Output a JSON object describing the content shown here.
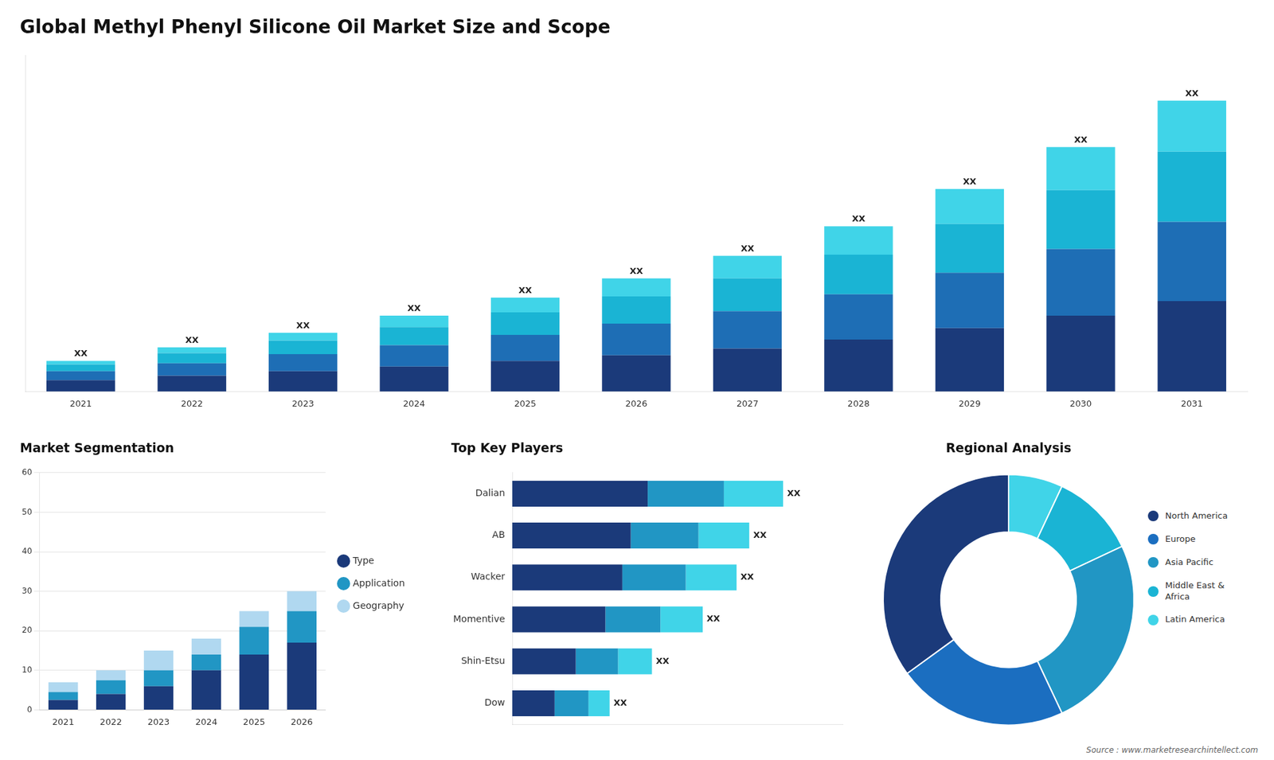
{
  "chart_data": [
    {
      "type": "bar",
      "title": "Global Methyl Phenyl Silicone Oil Market Size and Scope",
      "categories": [
        "2021",
        "2022",
        "2023",
        "2024",
        "2025",
        "2026",
        "2027",
        "2028",
        "2029",
        "2030",
        "2031"
      ],
      "series": [
        {
          "color": "#1b3a7a",
          "values": [
            1.0,
            1.4,
            1.8,
            2.2,
            2.7,
            3.2,
            3.8,
            4.6,
            5.6,
            6.7,
            8.0
          ]
        },
        {
          "color": "#1e6eb5",
          "values": [
            0.8,
            1.1,
            1.5,
            1.9,
            2.3,
            2.8,
            3.3,
            4.0,
            4.9,
            5.9,
            7.0
          ]
        },
        {
          "color": "#1ab4d4",
          "values": [
            0.6,
            0.9,
            1.2,
            1.6,
            2.0,
            2.4,
            2.9,
            3.5,
            4.3,
            5.2,
            6.2
          ]
        },
        {
          "color": "#40d4e8",
          "values": [
            0.3,
            0.5,
            0.7,
            1.0,
            1.3,
            1.6,
            2.0,
            2.5,
            3.1,
            3.8,
            4.5
          ]
        }
      ],
      "stacked": true,
      "ylim": [
        0,
        29.7
      ],
      "yticks": [],
      "grid": false,
      "tick_labels": "x",
      "annotations": [
        {
          "category": "2021",
          "text": "XX"
        },
        {
          "category": "2022",
          "text": "XX"
        },
        {
          "category": "2023",
          "text": "XX"
        },
        {
          "category": "2024",
          "text": "XX"
        },
        {
          "category": "2025",
          "text": "XX"
        },
        {
          "category": "2026",
          "text": "XX"
        },
        {
          "category": "2027",
          "text": "XX"
        },
        {
          "category": "2028",
          "text": "XX"
        },
        {
          "category": "2029",
          "text": "XX"
        },
        {
          "category": "2030",
          "text": "XX"
        },
        {
          "category": "2031",
          "text": "XX"
        },
        {
          "text": "Source : www.marketresearchintellect.com"
        }
      ]
    },
    {
      "type": "bar",
      "title": "Market Segmentation",
      "categories": [
        "2021",
        "2022",
        "2023",
        "2024",
        "2025",
        "2026"
      ],
      "series": [
        {
          "name": "Type",
          "color": "#1b3a7a",
          "values": [
            2.5,
            4.0,
            6.0,
            10.0,
            14.0,
            17.0
          ]
        },
        {
          "name": "Application",
          "color": "#2196c4",
          "values": [
            2.0,
            3.5,
            4.0,
            4.0,
            7.0,
            8.0
          ]
        },
        {
          "name": "Geography",
          "color": "#b0d8f0",
          "values": [
            2.5,
            2.5,
            5.0,
            4.0,
            4.0,
            5.0
          ]
        }
      ],
      "stacked": true,
      "ylim": [
        0,
        60
      ],
      "yticks": [
        0,
        10,
        20,
        30,
        40,
        50,
        60
      ],
      "grid": true,
      "legend": "right"
    },
    {
      "type": "bar",
      "orientation": "horizontal",
      "title": "Top Key Players",
      "categories": [
        "Dalian",
        "AB",
        "Wacker",
        "Momentive",
        "Shin-Etsu",
        "Dow"
      ],
      "series": [
        {
          "color": "#1b3a7a",
          "values": [
            32,
            28,
            26,
            22,
            15,
            10
          ]
        },
        {
          "color": "#2196c4",
          "values": [
            18,
            16,
            15,
            13,
            10,
            8
          ]
        },
        {
          "color": "#40d4e8",
          "values": [
            14,
            12,
            12,
            10,
            8,
            5
          ]
        }
      ],
      "stacked": true,
      "xlim": [
        0,
        78.08
      ],
      "xticks": [],
      "grid": false,
      "tick_labels": "y",
      "annotations": [
        {
          "category": "Dalian",
          "text": "XX"
        },
        {
          "category": "AB",
          "text": "XX"
        },
        {
          "category": "Wacker",
          "text": "XX"
        },
        {
          "category": "Momentive",
          "text": "XX"
        },
        {
          "category": "Shin-Etsu",
          "text": "XX"
        },
        {
          "category": "Dow",
          "text": "XX"
        }
      ]
    },
    {
      "type": "doughnut",
      "title": "Regional Analysis",
      "categories": [
        "Latin America",
        "Middle East &\nAfrica",
        "Asia Pacific",
        "Europe",
        "North America"
      ],
      "values": [
        7,
        11,
        25,
        22,
        35
      ],
      "colors": [
        "#40d4e8",
        "#1ab4d4",
        "#2196c4",
        "#1b6ec0",
        "#1b3a7a"
      ],
      "legend": "right"
    }
  ]
}
